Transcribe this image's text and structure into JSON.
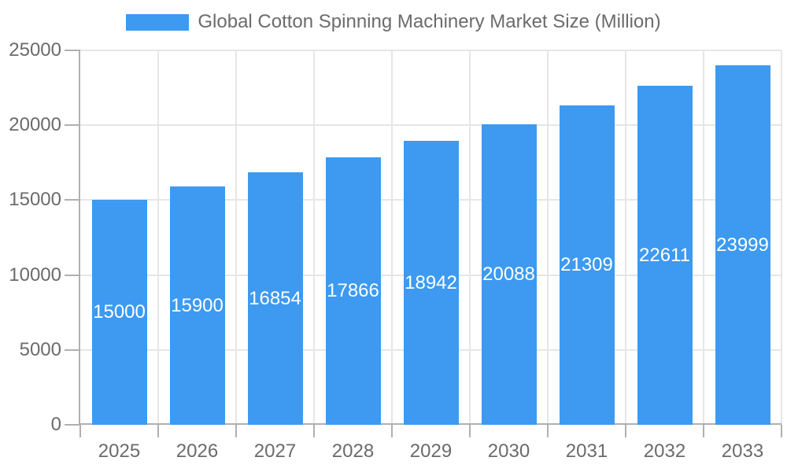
{
  "chart_data": {
    "type": "bar",
    "title": "Global Cotton Spinning Machinery Market Size (Million)",
    "categories": [
      "2025",
      "2026",
      "2027",
      "2028",
      "2029",
      "2030",
      "2031",
      "2032",
      "2033"
    ],
    "values": [
      15000,
      15900,
      16854,
      17866,
      18942,
      20088,
      21309,
      22611,
      23999
    ],
    "xlabel": "",
    "ylabel": "",
    "ylim": [
      0,
      25000
    ],
    "yticks": [
      0,
      5000,
      10000,
      15000,
      20000,
      25000
    ],
    "grid": true,
    "legend_position": "top",
    "bar_color": "#3d9af0",
    "value_label_color": "#ffffff",
    "axis_text_color": "#6b6b6b",
    "grid_color": "#e6e6e6",
    "axis_line_color": "#b0b0b0",
    "background_color": "#ffffff"
  }
}
